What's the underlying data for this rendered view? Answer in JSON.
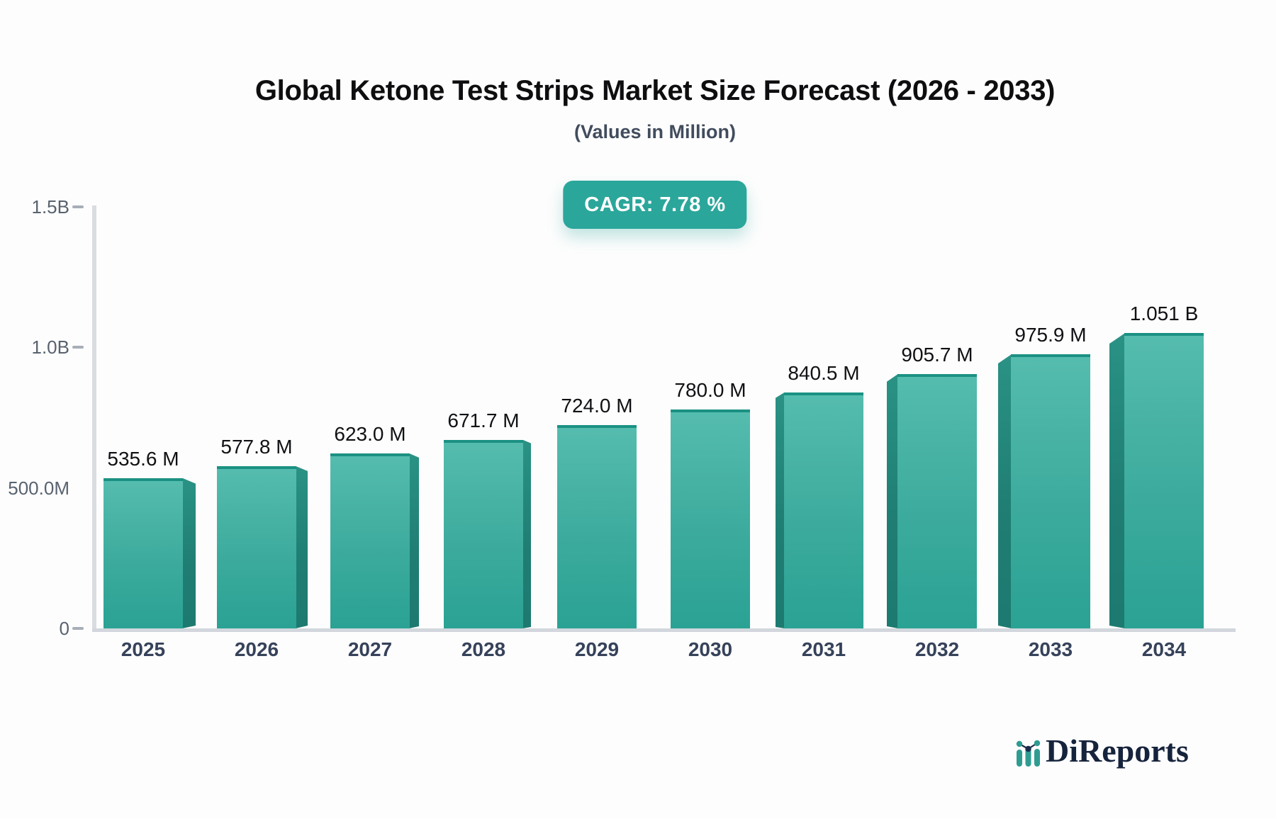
{
  "chart": {
    "title": "Global Ketone Test Strips Market Size Forecast (2026 - 2033)",
    "subtitle": "(Values in Million)",
    "cagr_badge": "CAGR: 7.78 %"
  },
  "chart_data": {
    "type": "bar",
    "title": "Global Ketone Test Strips Market Size Forecast (2026 - 2033)",
    "subtitle": "(Values in Million)",
    "cagr": "7.78 %",
    "categories": [
      "2025",
      "2026",
      "2027",
      "2028",
      "2029",
      "2030",
      "2031",
      "2032",
      "2033",
      "2034"
    ],
    "values": [
      535.6,
      577.8,
      623.0,
      671.7,
      724.0,
      780.0,
      840.5,
      905.7,
      975.9,
      1051.0
    ],
    "value_labels": [
      "535.6 M",
      "577.8 M",
      "623.0 M",
      "671.7 M",
      "724.0 M",
      "780.0 M",
      "840.5 M",
      "905.7 M",
      "975.9 M",
      "1.051 B"
    ],
    "unit_of_values": "millions",
    "ylim": [
      0,
      1500
    ],
    "yticks": [
      {
        "label": "0",
        "value": 0,
        "dash": true
      },
      {
        "label": "500.0M",
        "value": 500,
        "dash": false
      },
      {
        "label": "1.0B",
        "value": 1000,
        "dash": true
      },
      {
        "label": "1.5B",
        "value": 1500,
        "dash": true
      }
    ],
    "grid": false,
    "legend": "none",
    "bar_color": "#2ba99c",
    "bar_side_color": "#1f7d73",
    "bar_top_line_color": "#1b9183"
  },
  "branding": {
    "logo_text": "DiReports",
    "logo_teal": "#2f9c92",
    "logo_navy": "#1b2b4a"
  }
}
